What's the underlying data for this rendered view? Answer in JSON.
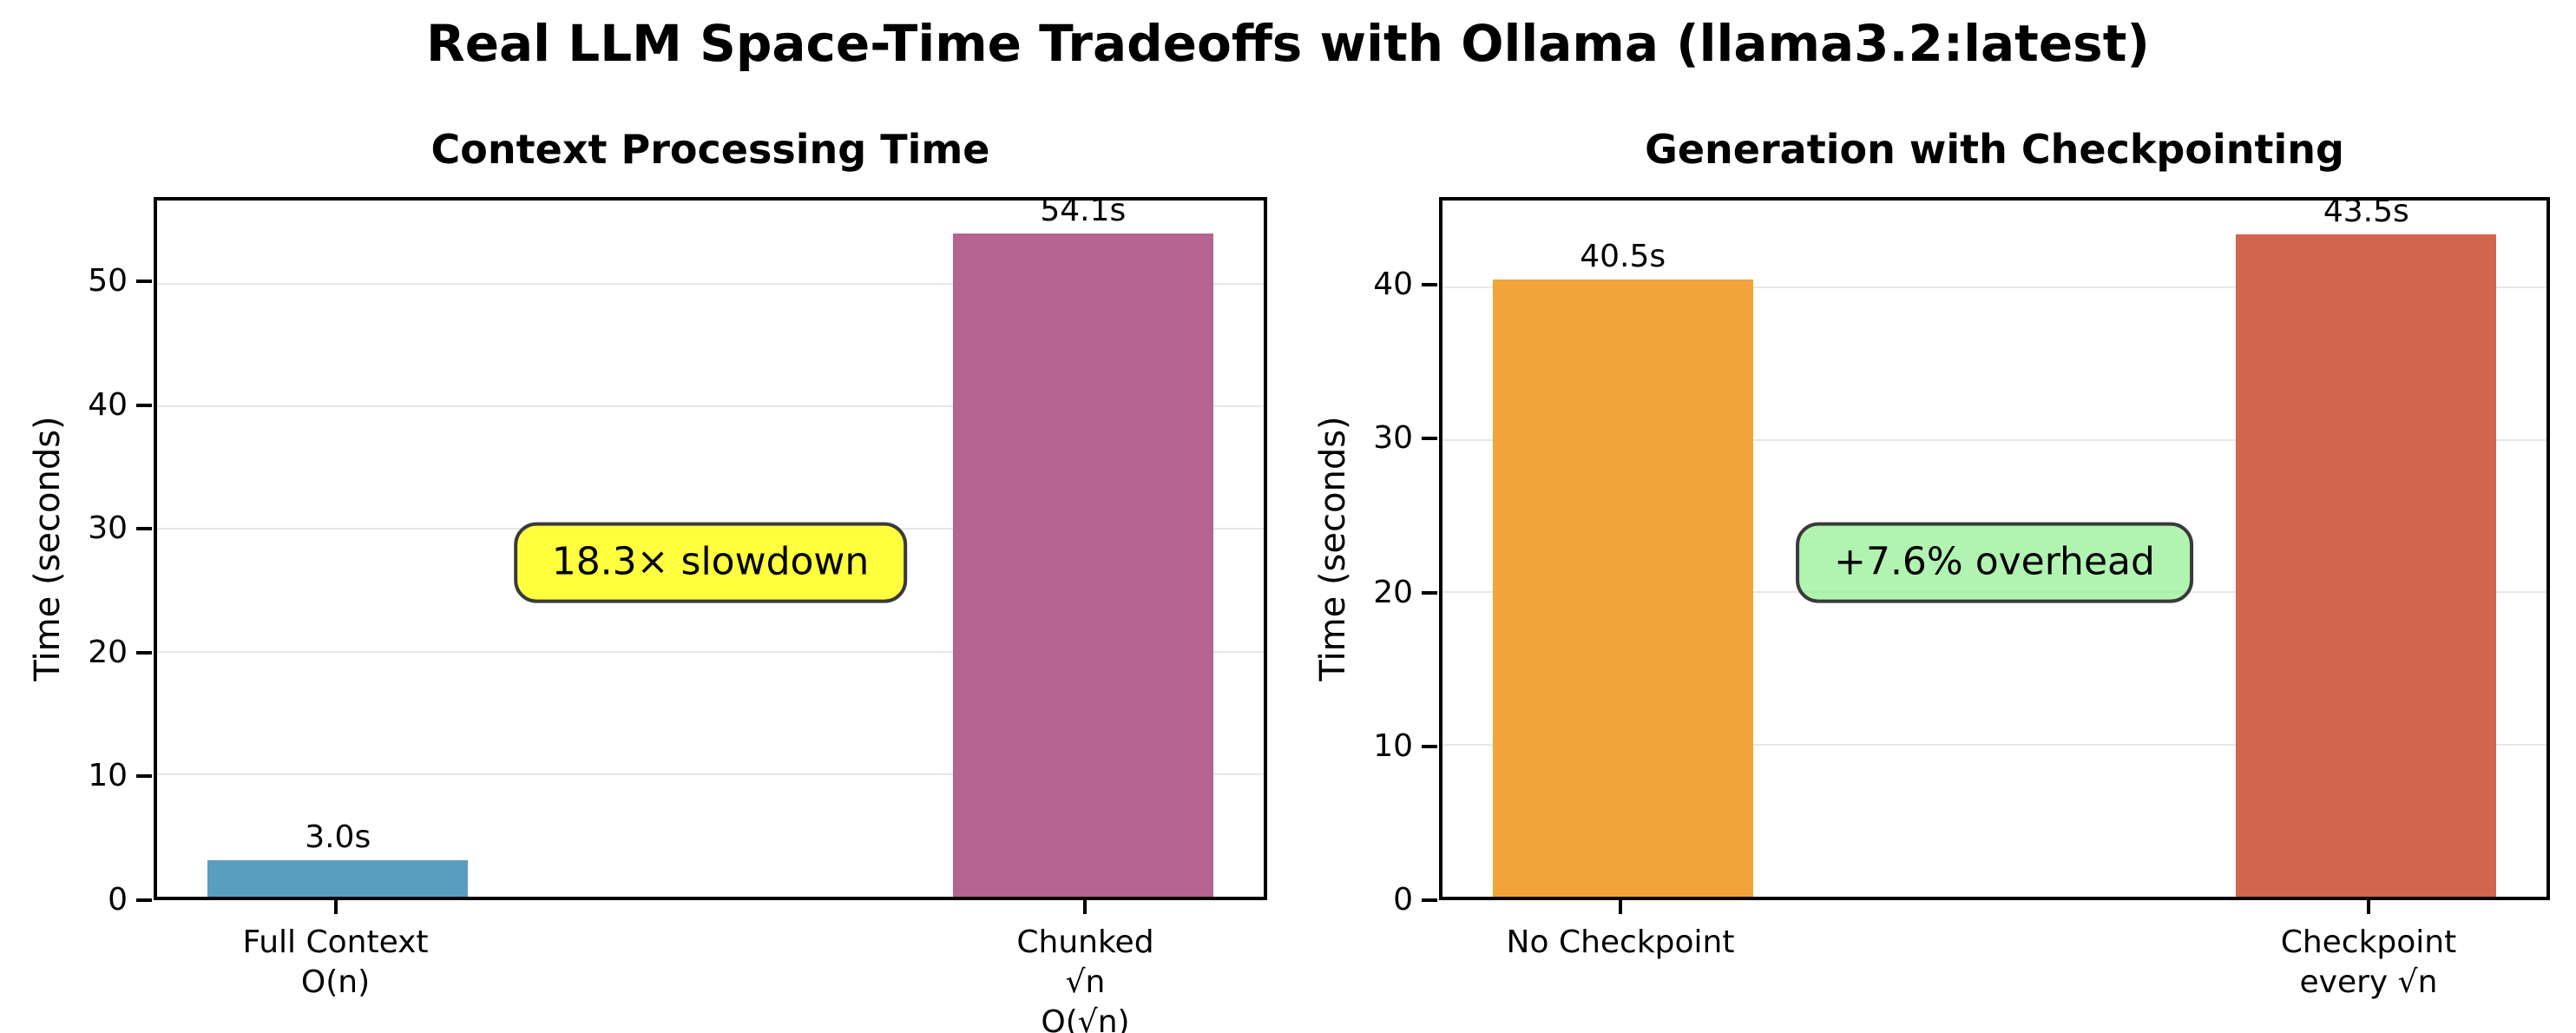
{
  "figure": {
    "title": "Real LLM Space-Time Tradeoffs with Ollama (llama3.2:latest)",
    "background": "#ffffff",
    "spine_color": "#000000",
    "grid_color": "#e7e7e7",
    "text_color": "#000000"
  },
  "chart_data": [
    {
      "type": "bar",
      "title": "Context Processing Time",
      "xlabel": "",
      "ylabel": "Time (seconds)",
      "categories": [
        "Full Context\nO(n)",
        "Chunked √n\nO(√n)"
      ],
      "values": [
        3.0,
        54.1
      ],
      "bar_labels": [
        "3.0s",
        "54.1s"
      ],
      "bar_colors": [
        "#5A9DBE",
        "#B4648E"
      ],
      "yticks": [
        0,
        10,
        20,
        30,
        40,
        50
      ],
      "ylim": [
        0,
        56.8
      ],
      "grid": "horizontal",
      "legend": "none",
      "annotation": {
        "text": "18.3× slowdown",
        "fill": "rgba(255,255,40,0.9)",
        "border": "#3a3a3a"
      }
    },
    {
      "type": "bar",
      "title": "Generation with Checkpointing",
      "xlabel": "",
      "ylabel": "Time (seconds)",
      "categories": [
        "No Checkpoint",
        "Checkpoint\nevery √n"
      ],
      "values": [
        40.5,
        43.5
      ],
      "bar_labels": [
        "40.5s",
        "43.5s"
      ],
      "bar_colors": [
        "#F2A43A",
        "#D1654D"
      ],
      "yticks": [
        0,
        10,
        20,
        30,
        40
      ],
      "ylim": [
        0,
        45.7
      ],
      "grid": "horizontal",
      "legend": "none",
      "annotation": {
        "text": "+7.6% overhead",
        "fill": "rgba(144,238,144,0.7)",
        "border": "#3a3a3a"
      }
    }
  ]
}
